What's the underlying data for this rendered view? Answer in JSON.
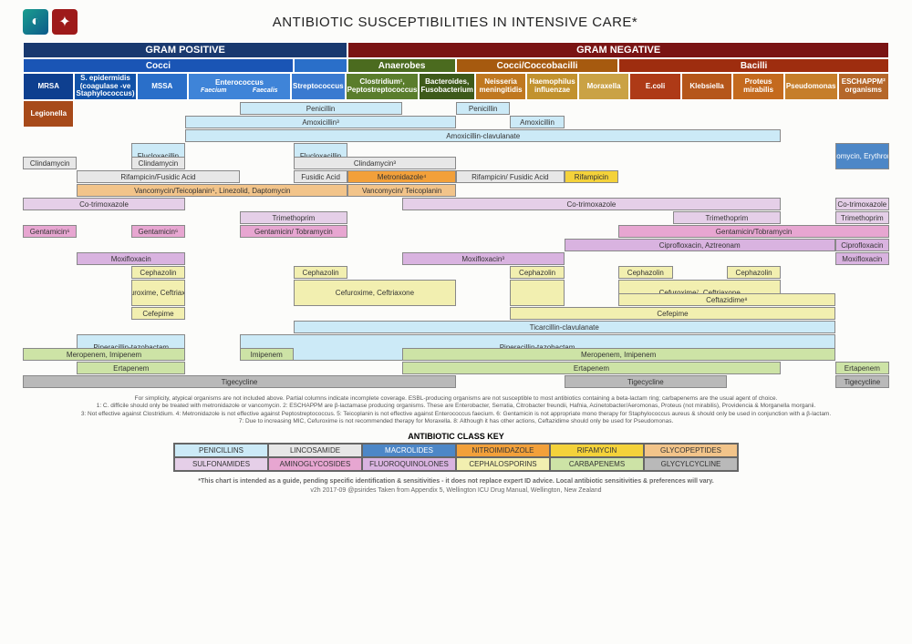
{
  "title": "ANTIBIOTIC SUSCEPTIBILITIES IN INTENSIVE CARE*",
  "colors": {
    "gram_pos": "#19396f",
    "gram_neg": "#7a1414",
    "cocci_pos": "#154a9e",
    "anaerobes": "#4b6b1f",
    "cocci_neg": "#a65a0f",
    "bacilli": "#9e2d0f",
    "penicillin": "#cceaf7",
    "lincosamide": "#e7e7e7",
    "macrolide": "#4d87c7",
    "nitroimidazole": "#f2a03a",
    "rifamycin": "#f4d23a",
    "glycopeptide": "#f2c48a",
    "sulfonamide": "#e5cfe8",
    "aminoglycoside": "#e7a6d1",
    "fluoroquinolone": "#d9b3e0",
    "cephalosporin": "#f2efb0",
    "carbapenem": "#cde3a6",
    "glycylcycline": "#b9b9b9"
  },
  "top": {
    "row1": [
      {
        "label": "GRAM POSITIVE",
        "span": 6,
        "bg": "#19396f"
      },
      {
        "label": "GRAM NEGATIVE",
        "span": 10,
        "bg": "#7a1414"
      }
    ],
    "row2": [
      {
        "label": "Cocci",
        "span": 5,
        "bg": "#1a55b5"
      },
      {
        "label": "",
        "span": 1,
        "bg": "#2a6fc9"
      },
      {
        "label": "Anaerobes",
        "span": 2,
        "bg": "#4b6b1f"
      },
      {
        "label": "Cocci/Coccobacilli",
        "span": 3,
        "bg": "#a65a0f"
      },
      {
        "label": "Bacilli",
        "span": 5,
        "bg": "#9e2d0f"
      }
    ],
    "row3": [
      {
        "label": "MRSA",
        "bg": "#0e3f8f"
      },
      {
        "label": "S. epidermidis (coagulase -ve Staphylococcus)",
        "bg": "#1152a8"
      },
      {
        "label": "MSSA",
        "bg": "#2a6fc9",
        "span": 1
      },
      {
        "label": "Enterococcus",
        "bg": "#3f84d8",
        "span": 2,
        "sub": [
          "Faecium",
          "Faecalis"
        ]
      },
      {
        "label": "Streptococcus",
        "bg": "#3a7ad0"
      },
      {
        "label": "Clostridium¹, Peptostreptococcus",
        "bg": "#5a7d2c"
      },
      {
        "label": "Bacteroides, Fusobacterium",
        "bg": "#3e5a1a"
      },
      {
        "label": "Neisseria meningitidis",
        "bg": "#c07820"
      },
      {
        "label": "Haemophilus influenzae",
        "bg": "#c2922e"
      },
      {
        "label": "Moraxella",
        "bg": "#caa245"
      },
      {
        "label": "E.coli",
        "bg": "#ae3a17"
      },
      {
        "label": "Klebsiella",
        "bg": "#b5561a"
      },
      {
        "label": "Proteus mirabilis",
        "bg": "#c46a1e"
      },
      {
        "label": "Pseudomonas",
        "bg": "#c67e2a"
      },
      {
        "label": "ESCHAPPM² organisms",
        "bg": "#b5672a"
      },
      {
        "label": "Legionella",
        "bg": "#a74a1a"
      }
    ]
  },
  "bars": [
    [
      {
        "s": 4,
        "e": 7,
        "t": "Penicillin",
        "c": "penicillin"
      },
      {
        "s": 8,
        "e": 9,
        "t": "Penicillin",
        "c": "penicillin"
      }
    ],
    [
      {
        "s": 3,
        "e": 8,
        "t": "Amoxicillin³",
        "c": "penicillin"
      },
      {
        "s": 9,
        "e": 10,
        "t": "Amoxicillin",
        "c": "penicillin"
      }
    ],
    [
      {
        "s": 3,
        "e": 14,
        "t": "Amoxicillin-clavulanate",
        "c": "penicillin"
      }
    ],
    [
      {
        "s": 2,
        "e": 3,
        "t": "Flucloxacillin",
        "c": "penicillin"
      },
      {
        "s": 5,
        "e": 6,
        "t": "Flucloxacillin",
        "c": "penicillin"
      },
      {
        "s": 15,
        "e": 16,
        "t": "Azithromycin, Erythromycin",
        "c": "macrolide",
        "h": 2
      }
    ],
    [
      {
        "s": 0,
        "e": 1,
        "t": "Clindamycin",
        "c": "lincosamide"
      },
      {
        "s": 2,
        "e": 3,
        "t": "Clindamycin",
        "c": "lincosamide"
      },
      {
        "s": 5,
        "e": 8,
        "t": "Clindamycin³",
        "c": "lincosamide"
      }
    ],
    [
      {
        "s": 1,
        "e": 4,
        "t": "Rifampicin/Fusidic Acid",
        "c": "lincosamide"
      },
      {
        "s": 5,
        "e": 6,
        "t": "Fusidic Acid",
        "c": "lincosamide"
      },
      {
        "s": 6,
        "e": 8,
        "t": "Metronidazole⁴",
        "c": "nitroimidazole"
      },
      {
        "s": 8,
        "e": 10,
        "t": "Rifampicin/ Fusidic Acid",
        "c": "lincosamide"
      },
      {
        "s": 10,
        "e": 11,
        "t": "Rifampicin",
        "c": "rifamycin"
      }
    ],
    [
      {
        "s": 1,
        "e": 6,
        "t": "Vancomycin/Teicoplanin⁵, Linezolid, Daptomycin",
        "c": "glycopeptide"
      },
      {
        "s": 6,
        "e": 8,
        "t": "Vancomycin/ Teicoplanin",
        "c": "glycopeptide"
      }
    ],
    [
      {
        "s": 0,
        "e": 3,
        "t": "Co-trimoxazole",
        "c": "sulfonamide"
      },
      {
        "s": 7,
        "e": 14,
        "t": "Co-trimoxazole",
        "c": "sulfonamide"
      },
      {
        "s": 15,
        "e": 16,
        "t": "Co-trimoxazole",
        "c": "sulfonamide"
      }
    ],
    [
      {
        "s": 4,
        "e": 6,
        "t": "Trimethoprim",
        "c": "sulfonamide"
      },
      {
        "s": 12,
        "e": 14,
        "t": "Trimethoprim",
        "c": "sulfonamide"
      },
      {
        "s": 15,
        "e": 16,
        "t": "Trimethoprim",
        "c": "sulfonamide"
      }
    ],
    [
      {
        "s": 0,
        "e": 1,
        "t": "Gentamicin⁶",
        "c": "aminoglycoside"
      },
      {
        "s": 2,
        "e": 3,
        "t": "Gentamicin⁶",
        "c": "aminoglycoside"
      },
      {
        "s": 4,
        "e": 6,
        "t": "Gentamicin/ Tobramycin",
        "c": "aminoglycoside"
      },
      {
        "s": 11,
        "e": 16,
        "t": "Gentamicin/Tobramycin",
        "c": "aminoglycoside"
      }
    ],
    [
      {
        "s": 10,
        "e": 15,
        "t": "Ciprofloxacin, Aztreonam",
        "c": "fluoroquinolone"
      },
      {
        "s": 15,
        "e": 16,
        "t": "Ciprofloxacin",
        "c": "fluoroquinolone"
      }
    ],
    [
      {
        "s": 1,
        "e": 3,
        "t": "Moxifloxacin",
        "c": "fluoroquinolone"
      },
      {
        "s": 7,
        "e": 10,
        "t": "Moxifloxacin³",
        "c": "fluoroquinolone"
      },
      {
        "s": 15,
        "e": 16,
        "t": "Moxifloxacin",
        "c": "fluoroquinolone"
      }
    ],
    [
      {
        "s": 2,
        "e": 3,
        "t": "Cephazolin",
        "c": "cephalosporin"
      },
      {
        "s": 5,
        "e": 6,
        "t": "Cephazolin",
        "c": "cephalosporin"
      },
      {
        "s": 9,
        "e": 10,
        "t": "Cephazolin",
        "c": "cephalosporin"
      },
      {
        "s": 11,
        "e": 12,
        "t": "Cephazolin",
        "c": "cephalosporin"
      },
      {
        "s": 13,
        "e": 14,
        "t": "Cephazolin",
        "c": "cephalosporin"
      }
    ],
    [
      {
        "s": 2,
        "e": 3,
        "t": "Cefuroxime, Ceftriaxone",
        "c": "cephalosporin",
        "h": 2
      },
      {
        "s": 5,
        "e": 8,
        "t": "Cefuroxime, Ceftriaxone",
        "c": "cephalosporin"
      },
      {
        "s": 9,
        "e": 10,
        "t": "",
        "c": "cephalosporin"
      },
      {
        "s": 11,
        "e": 14,
        "t": "Cefuroxime⁷, Ceftriaxone",
        "c": "cephalosporin"
      }
    ],
    [
      {
        "s": 11,
        "e": 15,
        "t": "Ceftazidime⁸",
        "c": "cephalosporin"
      }
    ],
    [
      {
        "s": 2,
        "e": 3,
        "t": "Cefepime",
        "c": "cephalosporin"
      },
      {
        "s": 9,
        "e": 15,
        "t": "Cefepime",
        "c": "cephalosporin"
      }
    ],
    [
      {
        "s": 5,
        "e": 15,
        "t": "Ticarcillin-clavulanate",
        "c": "penicillin"
      }
    ],
    [
      {
        "s": 1,
        "e": 3,
        "t": "Piperacillin-tazobactam",
        "c": "penicillin",
        "h": 2
      },
      {
        "s": 4,
        "e": 15,
        "t": "Piperacillin-tazobactam",
        "c": "penicillin"
      }
    ],
    [
      {
        "s": 0,
        "e": 3,
        "t": "Meropenem, Imipenem",
        "c": "carbapenem"
      },
      {
        "s": 4,
        "e": 5,
        "t": "Imipenem",
        "c": "carbapenem"
      },
      {
        "s": 7,
        "e": 15,
        "t": "Meropenem, Imipenem",
        "c": "carbapenem"
      }
    ],
    [
      {
        "s": 1,
        "e": 3,
        "t": "Ertapenem",
        "c": "carbapenem"
      },
      {
        "s": 7,
        "e": 14,
        "t": "Ertapenem",
        "c": "carbapenem"
      },
      {
        "s": 15,
        "e": 16,
        "t": "Ertapenem",
        "c": "carbapenem"
      }
    ],
    [
      {
        "s": 0,
        "e": 8,
        "t": "Tigecycline",
        "c": "glycylcycline"
      },
      {
        "s": 10,
        "e": 13,
        "t": "Tigecycline",
        "c": "glycylcycline"
      },
      {
        "s": 15,
        "e": 16,
        "t": "Tigecycline",
        "c": "glycylcycline"
      }
    ]
  ],
  "notes": [
    "For simplicity, atypical organisms are not included above. Partial columns indicate incomplete coverage. ESBL-producing organisms are not susceptible to most antibiotics containing a beta-lactam ring; carbapenems are the usual agent of choice.",
    "1: C. difficile should only be treated with metronidazole or vancomycin. 2: ESCHAPPM are β-lactamase producing organisms. These are Enterobacter, Serratia, Citrobacter freundii, Hafnia, Acinetobacter/Aeromonas, Proteus (not mirabilis), Providencia & Morganella morganii.",
    "3: Not effective against Clostridium. 4: Metronidazole is not effective against Peptostreptococcus. 5: Teicoplanin is not effective against Enterococcus faecium. 6: Gentamicin is not appropriate mono therapy for Staphylococcus aureus & should only be used in conjunction with a β-lactam.",
    "7: Due to increasing MIC, Cefuroxime is not recommended therapy for Moraxella. 8: Although it has other actions, Ceftazidime should only be used for Pseudomonas."
  ],
  "keytitle": "ANTIBIOTIC CLASS KEY",
  "key": [
    {
      "t": "PENICILLINS",
      "c": "penicillin"
    },
    {
      "t": "LINCOSAMIDE",
      "c": "lincosamide"
    },
    {
      "t": "MACROLIDES",
      "c": "macrolide"
    },
    {
      "t": "NITROIMIDAZOLE",
      "c": "nitroimidazole"
    },
    {
      "t": "RIFAMYCIN",
      "c": "rifamycin"
    },
    {
      "t": "GLYCOPEPTIDES",
      "c": "glycopeptide"
    },
    {
      "t": "SULFONAMIDES",
      "c": "sulfonamide"
    },
    {
      "t": "AMINOGLYCOSIDES",
      "c": "aminoglycoside"
    },
    {
      "t": "FLUOROQUINOLONES",
      "c": "fluoroquinolone"
    },
    {
      "t": "CEPHALOSPORINS",
      "c": "cephalosporin"
    },
    {
      "t": "CARBAPENEMS",
      "c": "carbapenem"
    },
    {
      "t": "GLYCYLCYCLINE",
      "c": "glycylcycline"
    }
  ],
  "footer1": "*This chart is intended as a guide, pending specific identification & sensitivities - it does not replace expert ID advice. Local antibiotic sensitivities & preferences will vary.",
  "footer2": "v2h 2017-09 @psirides     Taken from Appendix 5, Wellington ICU Drug Manual, Wellington, New Zealand"
}
